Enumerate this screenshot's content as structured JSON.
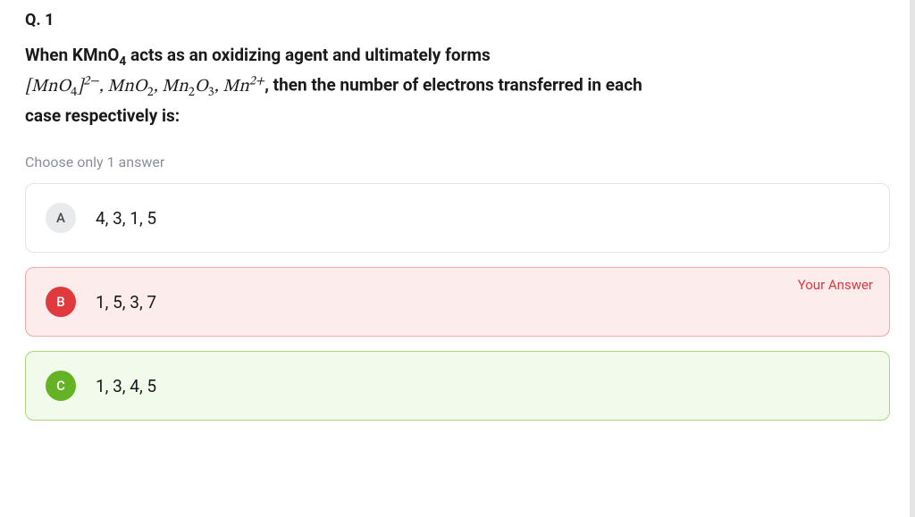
{
  "question": {
    "number": "Q. 1",
    "line1_prefix": "When KMnO",
    "line1_sub": "4",
    "line1_suffix": " acts as an oxidizing agent and ultimately forms",
    "formula_html": "[MnO<sub>4</sub>]<sup>2−</sup>, MnO<sub>2</sub>, Mn<sub>2</sub>O<sub>3</sub>, Mn<sup>2+</sup>",
    "line2_suffix": ", then the number of electrons transferred in each",
    "line3": "case respectively is:"
  },
  "instruction": "Choose only 1 answer",
  "your_answer_label": "Your Answer",
  "options": [
    {
      "letter": "A",
      "text": "4, 3, 1, 5",
      "state": "neutral",
      "badge_bg": "#e9eaec",
      "badge_fg": "#4a4a4a",
      "card_bg": "#ffffff",
      "card_border": "#e2e4e8",
      "is_user_answer": false
    },
    {
      "letter": "B",
      "text": "1, 5, 3, 7",
      "state": "wrong",
      "badge_bg": "#e0393e",
      "badge_fg": "#ffffff",
      "card_bg": "#fdecec",
      "card_border": "#f1a9a9",
      "is_user_answer": true,
      "your_answer_color": "#e0393e"
    },
    {
      "letter": "C",
      "text": "1, 3, 4, 5",
      "state": "correct",
      "badge_bg": "#63b324",
      "badge_fg": "#ffffff",
      "card_bg": "#f2faeb",
      "card_border": "#a9d77f",
      "is_user_answer": false
    }
  ]
}
